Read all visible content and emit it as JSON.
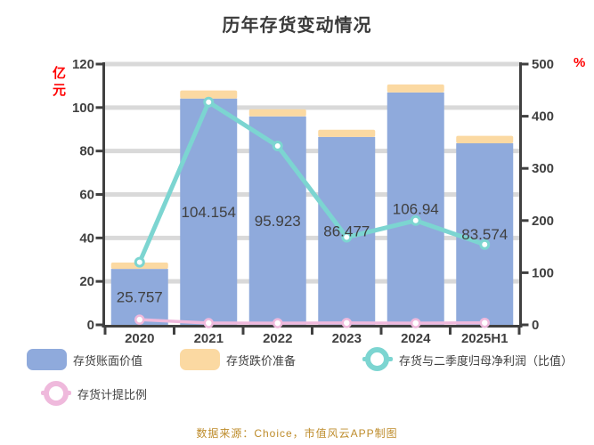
{
  "title": "历年存货变动情况",
  "footer": "数据来源：Choice，市值风云APP制图",
  "chart_data": {
    "type": "bar-line-combo",
    "title": "历年存货变动情况",
    "categories": [
      "2020",
      "2021",
      "2022",
      "2023",
      "2024",
      "2025H1"
    ],
    "left_axis": {
      "unit": "亿元",
      "ticks": [
        0,
        20,
        40,
        60,
        80,
        100,
        120
      ],
      "max": 120
    },
    "right_axis": {
      "unit": "%",
      "ticks": [
        0,
        100,
        200,
        300,
        400,
        500
      ],
      "max": 500
    },
    "grid": "horizontal-on",
    "legend_position": "bottom",
    "series": [
      {
        "name": "存货账面价值",
        "type": "bar",
        "axis": "left",
        "color": "#8FAADC",
        "values": [
          25.757,
          104.154,
          95.923,
          86.477,
          106.94,
          83.574
        ],
        "value_labels": [
          "25.757",
          "104.154",
          "95.923",
          "86.477",
          "106.94",
          "83.574"
        ]
      },
      {
        "name": "存货跌价准备",
        "type": "bar",
        "stacked_on_previous": true,
        "axis": "left",
        "color": "#FBD9A2",
        "values": [
          2.9,
          3.7,
          3.3,
          3.3,
          3.7,
          3.4
        ]
      },
      {
        "name": "存货与二季度归母净利润（比值）",
        "type": "line",
        "axis": "right",
        "color": "#7CD5D1",
        "marker": "donut",
        "values": [
          120,
          427,
          343,
          168,
          200,
          154
        ]
      },
      {
        "name": "存货计提比例",
        "type": "line",
        "axis": "right",
        "color": "#EFB9DC",
        "marker": "donut",
        "values": [
          10,
          3.4,
          3.3,
          3.7,
          3.3,
          3.9
        ]
      }
    ]
  },
  "colors": {
    "bar_blue": "#8FAADC",
    "bar_orange": "#FBD9A2",
    "line_teal": "#7CD5D1",
    "line_pink": "#EFB9DC",
    "grid": "#D9D9D9",
    "axis": "#404040",
    "unit_red": "#FF0000",
    "footer_gold": "#BE8C2B"
  }
}
